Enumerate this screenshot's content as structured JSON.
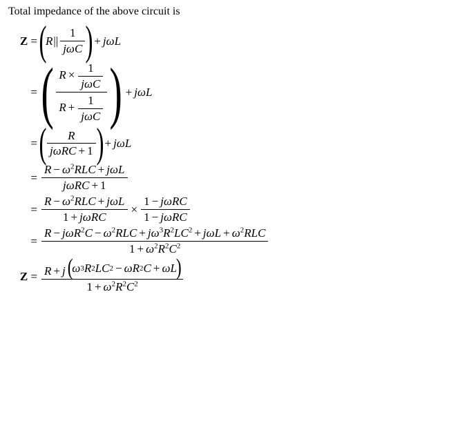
{
  "colors": {
    "text": "#000000",
    "background": "#ffffff",
    "rule": "#000000"
  },
  "fonts": {
    "family": "Times New Roman",
    "size_pt": 13,
    "sup_size_pt": 8
  },
  "intro": "Total impedance of the above circuit is",
  "sym": {
    "Z": "Z",
    "R": "R",
    "C": "C",
    "L": "L",
    "j": "j",
    "omega": "ω",
    "eq": "=",
    "plus": "+",
    "minus": "−",
    "times": "×",
    "par": "||",
    "one": "1",
    "two": "2",
    "three": "3"
  },
  "lines": {
    "l1": {
      "lead": "Z ="
    },
    "l2": {
      "lead": "="
    },
    "l3": {
      "lead": "="
    },
    "l4": {
      "lead": "="
    },
    "l5": {
      "lead": "="
    },
    "l6": {
      "lead": "="
    },
    "l7": {
      "lead": "Z ="
    }
  }
}
